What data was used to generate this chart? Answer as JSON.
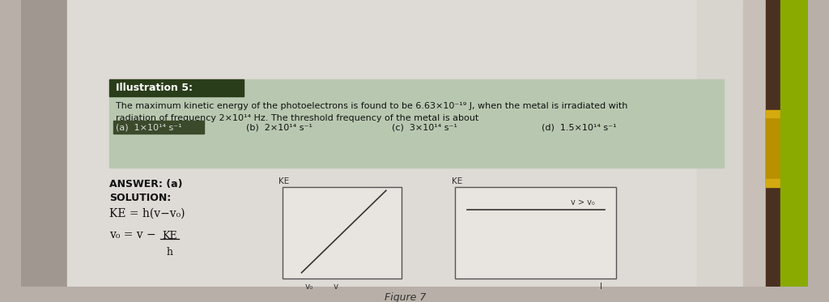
{
  "page_bg": "#d0cac0",
  "center_bg": "#e8e4df",
  "illustration_title": "Illustration 5:",
  "illustration_header_bg": "#3a4a2a",
  "illustration_header_color": "#ffffff",
  "illustration_body_bg": "#b8cbb8",
  "body_line1": "The maximum kinetic energy of the photoelectrons is found to be 6.63×10⁻¹⁹ J, when the metal is irradiated with",
  "body_line2": "radiation of frequency 2×10¹⁴ Hz. The threshold frequency of the metal is about",
  "option_a": "(a)  1×10¹⁴ s⁻¹",
  "option_b": "(b)  2×10¹⁴ s⁻¹",
  "option_c": "(c)  3×10¹⁴ s⁻¹",
  "option_d": "(d)  1.5×10¹⁴ s⁻¹",
  "answer_text": "ANSWER: (a)",
  "solution_text": "SOLUTION:",
  "eq1": "KE = h(v−v₀)",
  "eq2_left": "v₀ = v−",
  "eq2_frac_num": "KE",
  "eq2_frac_den": "h",
  "fig_caption": "Figure 7",
  "graph_box_color": "#f0ece8",
  "graph_line_color": "#444444",
  "pen_color_1": "#5a3a20",
  "pen_color_2": "#c8a800"
}
